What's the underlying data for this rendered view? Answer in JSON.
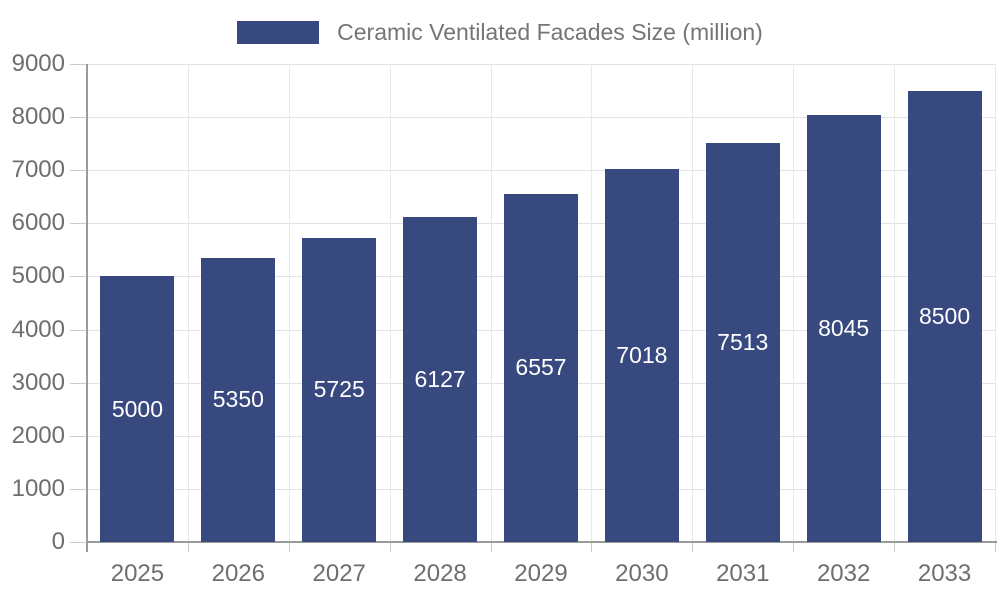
{
  "legend": {
    "label": "Ceramic Ventilated Facades Size (million)"
  },
  "chart_data": {
    "type": "bar",
    "title": "Ceramic Ventilated Facades Size (million)",
    "categories": [
      "2025",
      "2026",
      "2027",
      "2028",
      "2029",
      "2030",
      "2031",
      "2032",
      "2033"
    ],
    "values": [
      5000,
      5350,
      5725,
      6127,
      6557,
      7018,
      7513,
      8045,
      8500
    ],
    "xlabel": "",
    "ylabel": "",
    "ylim": [
      0,
      9000
    ],
    "ytick_interval": 1000,
    "ytick_labels": [
      "0",
      "1000",
      "2000",
      "3000",
      "4000",
      "5000",
      "6000",
      "7000",
      "8000",
      "9000"
    ],
    "grid": true,
    "bar_labels_visible": true,
    "bar_label_position": "middle-inside",
    "legend_position": "top-center",
    "colors": {
      "bar": "#37497F",
      "bar_label": "#ffffff",
      "axis_line": "#9a9a9a",
      "gridline_h": "#e2e2e2",
      "gridline_v": "#e9e9e9",
      "tick": "#c9c9c9",
      "axis_text": "#6e6e6e",
      "legend_text": "#757575"
    }
  }
}
